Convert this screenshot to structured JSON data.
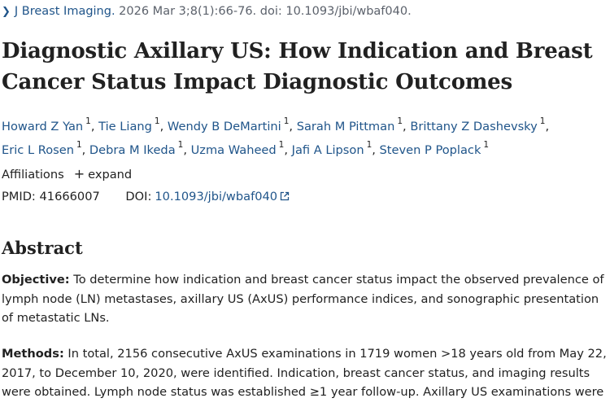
{
  "citation": {
    "journal": "J Breast Imaging.",
    "details": " 2026 Mar 3;8(1):66-76. doi: 10.1093/jbi/wbaf040."
  },
  "title": "Diagnostic Axillary US: How Indication and Breast Cancer Status Impact Diagnostic Outcomes",
  "authors": [
    {
      "name": "Howard Z Yan",
      "sup": "1"
    },
    {
      "name": "Tie Liang",
      "sup": "1"
    },
    {
      "name": "Wendy B DeMartini",
      "sup": "1"
    },
    {
      "name": "Sarah M Pittman",
      "sup": "1"
    },
    {
      "name": "Brittany Z Dashevsky",
      "sup": "1"
    },
    {
      "name": "Eric L Rosen",
      "sup": "1"
    },
    {
      "name": "Debra M Ikeda",
      "sup": "1"
    },
    {
      "name": "Uzma Waheed",
      "sup": "1"
    },
    {
      "name": "Jafi A Lipson",
      "sup": "1"
    },
    {
      "name": "Steven P Poplack",
      "sup": "1"
    }
  ],
  "affiliations": {
    "label": "Affiliations",
    "expand_label": "expand"
  },
  "ids": {
    "pmid_label": "PMID:",
    "pmid": "41666007",
    "doi_label": "DOI:",
    "doi": "10.1093/jbi/wbaf040"
  },
  "abstract": {
    "heading": "Abstract",
    "objective_label": "Objective:",
    "objective_text": " To determine how indication and breast cancer status impact the observed prevalence of lymph node (LN) metastases, axillary US (AxUS) performance indices, and sonographic presentation of metastatic LNs.",
    "methods_label": "Methods:",
    "methods_text": " In total, 2156 consecutive AxUS examinations in 1719 women >18 years old from May 22, 2017, to December 10, 2020, were identified. Indication, breast cancer status, and imaging results were obtained. Lymph node status was established ≥1 year follow-up. Axillary US examinations were"
  },
  "colors": {
    "link": "#20558a",
    "text": "#212121",
    "muted": "#5b616b"
  }
}
